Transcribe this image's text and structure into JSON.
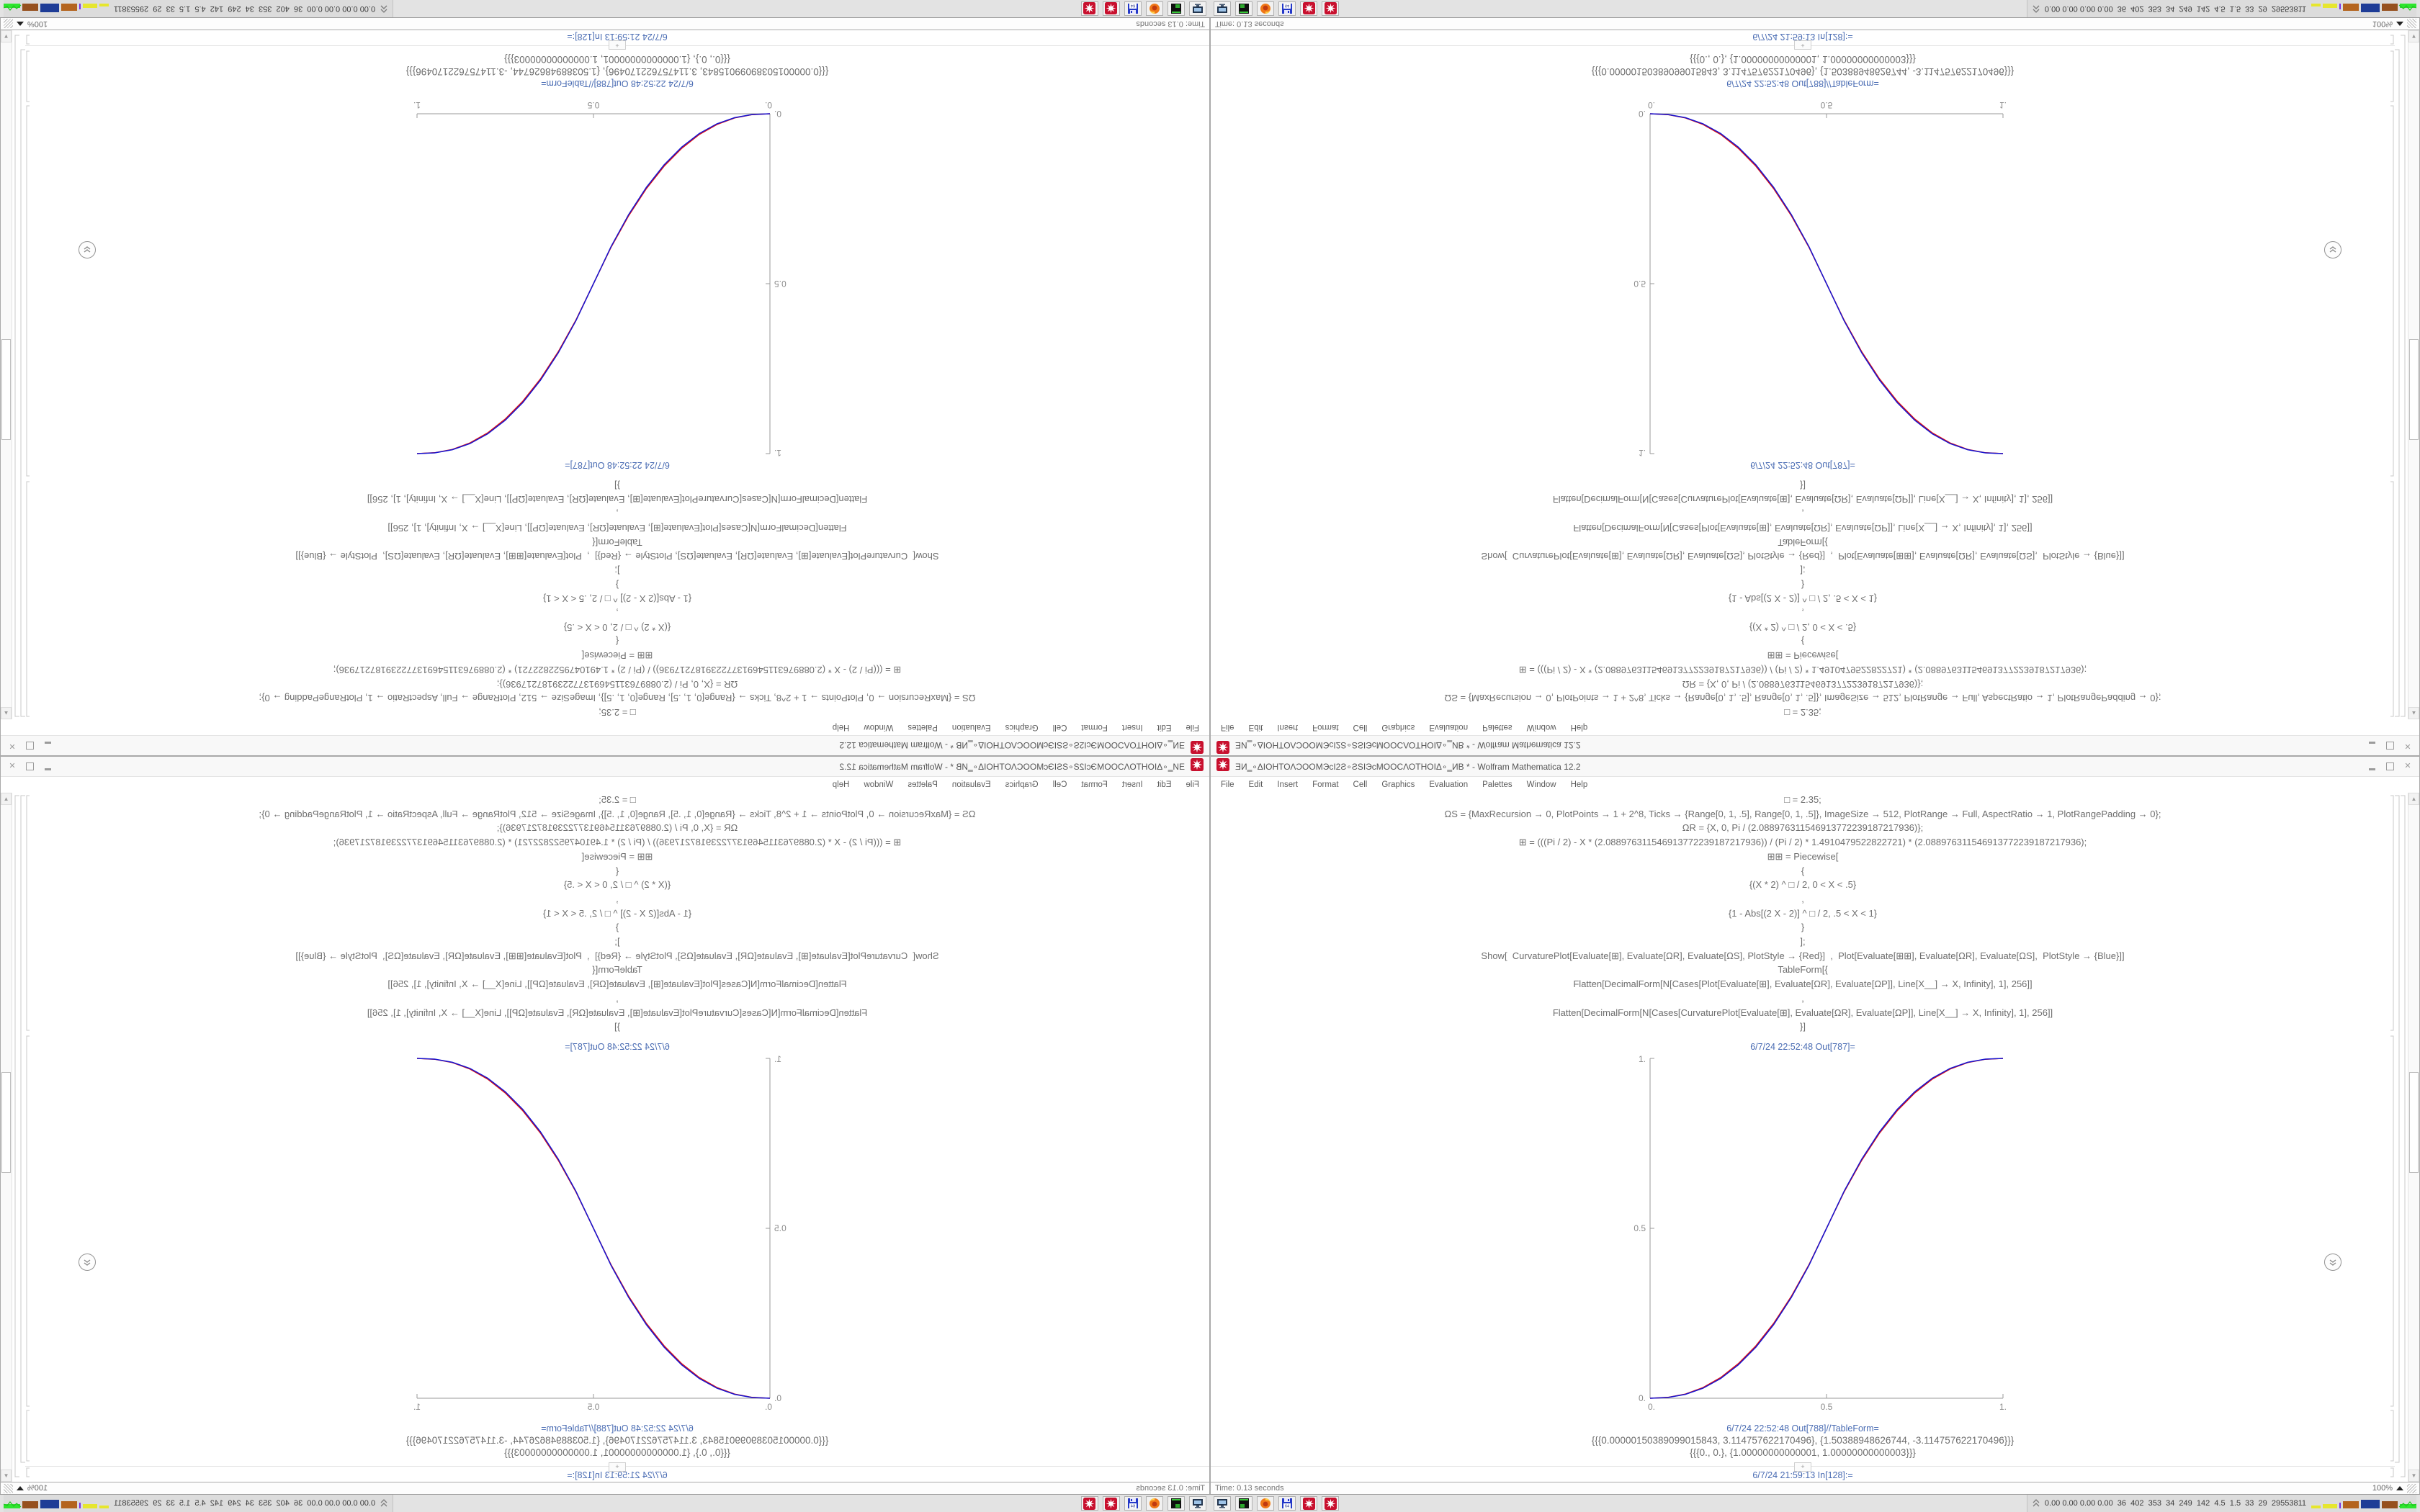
{
  "window": {
    "title": "ƎИ‗∘ΔΙΟΗΤΟΛϽΟΟΜЭϲΙ2Ƨ∘ƧSΙЭϲΜΟΟϹΛΟΤΗΟΙΔ∘‗ИΒ * - Wolfram Mathematica 12.2",
    "menu": [
      "File",
      "Edit",
      "Insert",
      "Format",
      "Cell",
      "Graphics",
      "Evaluation",
      "Palettes",
      "Window",
      "Help"
    ],
    "controls": {
      "minimize": "_",
      "maximize": "□",
      "close": "✕"
    },
    "status_left": "Time: 0.13 seconds",
    "zoom_level": "100%"
  },
  "notebook": {
    "code_lines": [
      "□ = 2.35;",
      "ΩS = {MaxRecursion → 0, PlotPoints → 1 + 2^8, Ticks → {Range[0, 1, .5], Range[0, 1, .5]}, ImageSize → 512, PlotRange → Full, AspectRatio → 1, PlotRangePadding → 0};",
      "ΩR = {X, 0, Pi / (2.088976311546913772239187217936)};",
      "⊞ = (((Pi / 2) - X * (2.088976311546913772239187217936)) / (Pi / 2) * 1.4910479522822721) * (2.088976311546913772239187217936);",
      "⊞⊞ = Piecewise[",
      "{",
      "{(X * 2) ^ □ / 2, 0 < X < .5}",
      ",",
      "{1 - Abs[(2 X - 2)] ^ □ / 2, .5 < X < 1}",
      "}",
      "];",
      "Show[  CurvaturePlot[Evaluate[⊞], Evaluate[ΩR], Evaluate[ΩS], PlotStyle → {Red}]  ,  Plot[Evaluate[⊞⊞], Evaluate[ΩR], Evaluate[ΩS],  PlotStyle → {Blue}]]",
      "TableForm[{",
      "Flatten[DecimalForm[N[Cases[Plot[Evaluate[⊞], Evaluate[ΩR], Evaluate[ΩP]], Line[X__] → X, Infinity], 1], 256]]",
      ",",
      "Flatten[DecimalForm[N[Cases[CurvaturePlot[Evaluate[⊞], Evaluate[ΩR], Evaluate[ΩP]], Line[X__] → X, Infinity], 1], 256]]",
      "}]"
    ],
    "out787_label": "6/7/24 22:52:48 Out[787]=",
    "out788_label": "6/7/24 22:52:48 Out[788]//TableForm=",
    "out788_rows": [
      "{{{0.00000150389099015843, 3.114757622170496}, {1.50388948626744, -3.114757622170496}}}",
      "{{{0., 0.}, {1.00000000000001, 1.00000000000003}}}"
    ],
    "in_label": "6/7/24 21:59:13 In[128]:=",
    "insert_plus": "+"
  },
  "chart_data": {
    "type": "line",
    "title": "",
    "xlabel": "",
    "ylabel": "",
    "xlim": [
      0,
      1
    ],
    "ylim": [
      0,
      1
    ],
    "xticks": [
      "0.",
      "0.5",
      "1."
    ],
    "yticks": [
      "0.",
      "0.5",
      "1."
    ],
    "grid": false,
    "legend": "none",
    "easing_exponent": 2.35,
    "x": [
      0,
      0.05,
      0.1,
      0.15,
      0.2,
      0.25,
      0.3,
      0.35,
      0.4,
      0.45,
      0.5,
      0.55,
      0.6,
      0.65,
      0.7,
      0.75,
      0.8,
      0.85,
      0.9,
      0.95,
      1
    ],
    "series": [
      {
        "name": "CurvaturePlot (Red)",
        "color": "#e01010",
        "values": [
          0,
          0.0025,
          0.0123,
          0.0313,
          0.0608,
          0.1016,
          0.1544,
          0.2202,
          0.2993,
          0.3924,
          0.5,
          0.6076,
          0.7007,
          0.7798,
          0.8456,
          0.8984,
          0.9392,
          0.9687,
          0.9877,
          0.9975,
          1
        ]
      },
      {
        "name": "Plot (Blue)",
        "color": "#1414d2",
        "values": [
          0,
          0.0022,
          0.0114,
          0.0295,
          0.058,
          0.098,
          0.1505,
          0.2163,
          0.296,
          0.3904,
          0.5,
          0.6096,
          0.704,
          0.7837,
          0.8495,
          0.902,
          0.942,
          0.9705,
          0.9886,
          0.9978,
          1
        ]
      }
    ]
  },
  "taskbar": {
    "buttons": [
      {
        "name": "display",
        "label": ""
      },
      {
        "name": "terminal",
        "label": ""
      },
      {
        "name": "firefox",
        "label": ""
      },
      {
        "name": "floppy-64",
        "label": "64"
      },
      {
        "name": "mathematica-1",
        "label": ""
      },
      {
        "name": "mathematica-2",
        "label": ""
      }
    ],
    "tray_values": "0.00 0.00 0.00 0.00  36  402  353  34  249  142  4.5  1.5  33  29  29553811",
    "tray_graph": [
      {
        "color": "#e6e62e",
        "w": 13,
        "h": 4
      },
      {
        "color": "#e6e62e",
        "w": 20,
        "h": 6
      },
      {
        "color": "#7a2ee6",
        "w": 2,
        "h": 8
      },
      {
        "color": "#b4641e",
        "w": 22,
        "h": 10
      },
      {
        "color": "#1e3c96",
        "w": 26,
        "h": 12
      },
      {
        "color": "#96501e",
        "w": 22,
        "h": 10
      },
      {
        "color": "#2ee62e",
        "w": 24,
        "h": 6
      }
    ],
    "colors": {
      "accent_red": "#c8102e"
    }
  }
}
